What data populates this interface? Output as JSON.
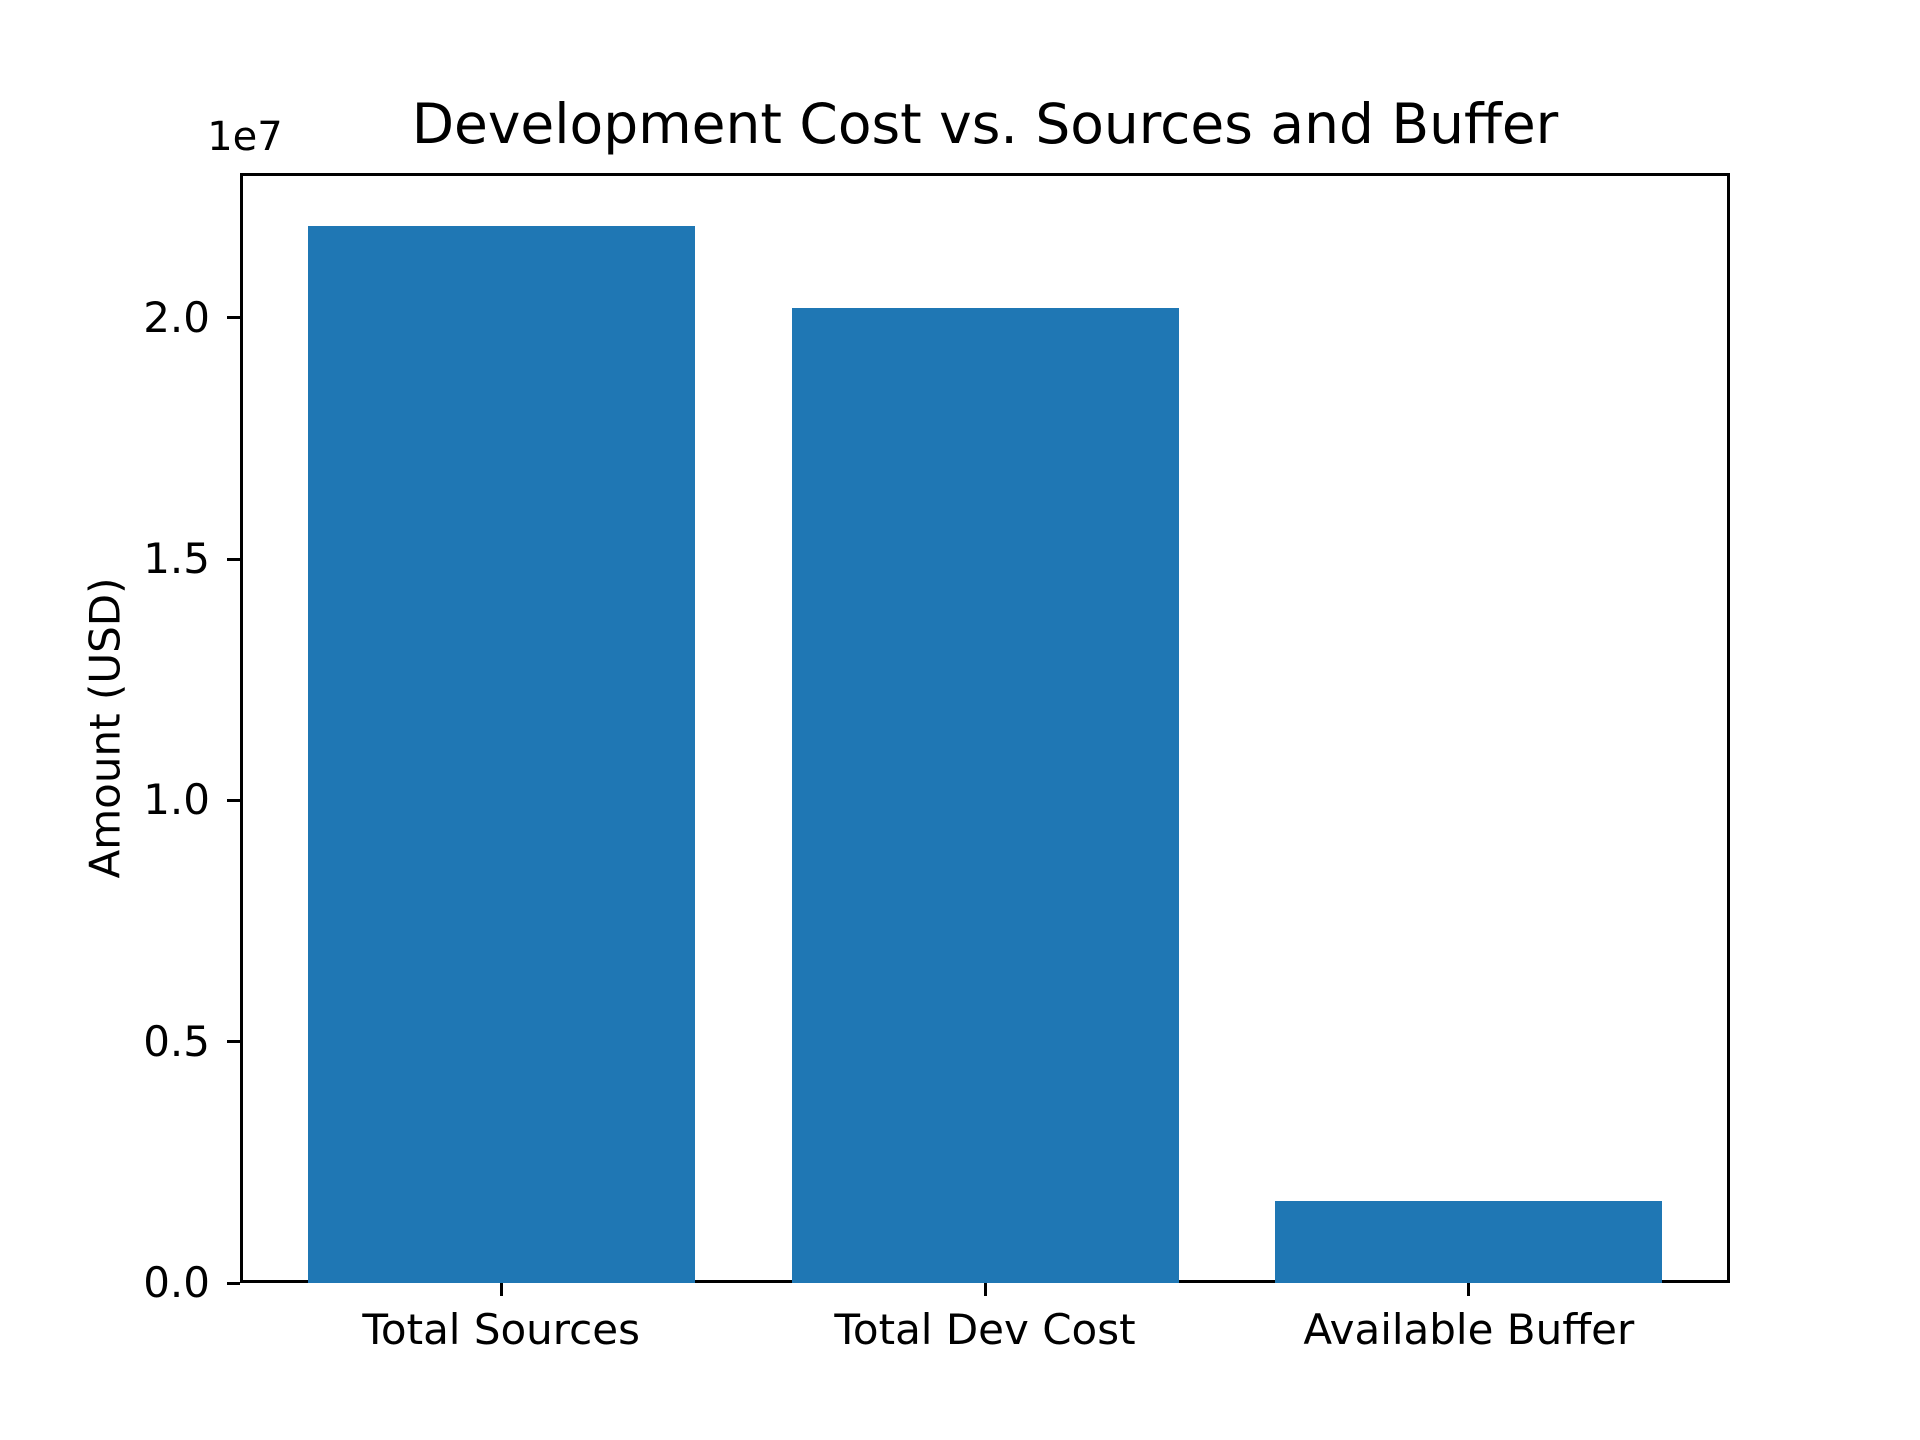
{
  "chart_data": {
    "type": "bar",
    "title": "Development Cost vs. Sources and Buffer",
    "xlabel": "",
    "ylabel": "Amount (USD)",
    "offset_label": "1e7",
    "categories": [
      "Total Sources",
      "Total Dev Cost",
      "Available Buffer"
    ],
    "values": [
      21900000,
      20200000,
      1700000
    ],
    "ylim": [
      0,
      23000000
    ],
    "yticks": [
      0,
      5000000,
      10000000,
      15000000,
      20000000
    ],
    "ytick_labels": [
      "0.0",
      "0.5",
      "1.0",
      "1.5",
      "2.0"
    ],
    "grid": false,
    "legend": false,
    "colors": {
      "bar": "#1f77b4",
      "text": "#000000",
      "spine": "#000000",
      "background": "#ffffff"
    }
  }
}
